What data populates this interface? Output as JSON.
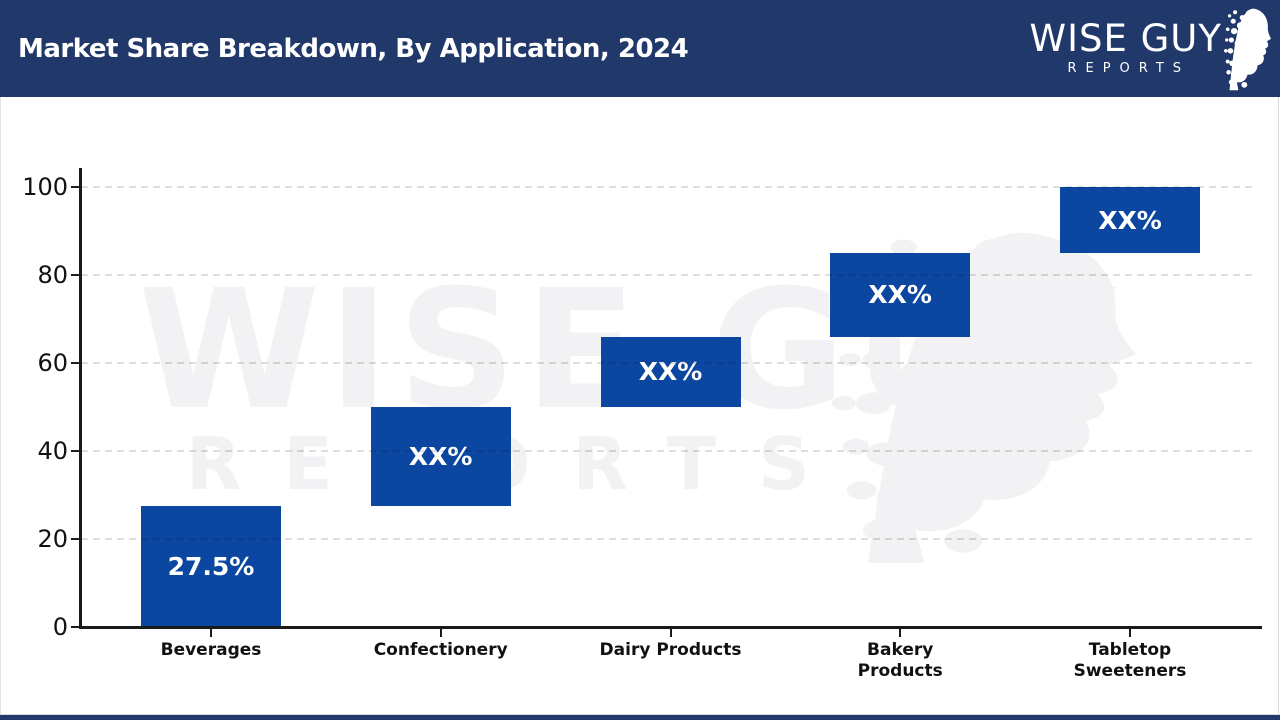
{
  "header": {
    "title": "Market Share Breakdown, By Application, 2024",
    "bg_color": "#21386a",
    "logo": {
      "line1": "WISE GUY",
      "line2": "REPORTS"
    }
  },
  "watermark": {
    "line1": "WISE GUY",
    "line2": "REPORTS"
  },
  "chart_data": {
    "type": "bar",
    "subtype": "floating-waterfall-bars",
    "title": "Market Share Breakdown, By Application, 2024",
    "categories": [
      "Beverages",
      "Confectionery",
      "Dairy Products",
      "Bakery Products",
      "Tabletop Sweeteners"
    ],
    "bars": [
      {
        "category": "Beverages",
        "start": 0,
        "end": 27.5,
        "label": "27.5%"
      },
      {
        "category": "Confectionery",
        "start": 27.5,
        "end": 50,
        "label": "XX%"
      },
      {
        "category": "Dairy Products",
        "start": 50,
        "end": 66,
        "label": "XX%"
      },
      {
        "category": "Bakery Products",
        "start": 66,
        "end": 85,
        "label": "XX%"
      },
      {
        "category": "Tabletop Sweeteners",
        "start": 85,
        "end": 100,
        "label": "XX%"
      }
    ],
    "yticks": [
      0,
      20,
      40,
      60,
      80,
      100
    ],
    "ylim": [
      0,
      104
    ],
    "xlabel": "",
    "ylabel": "",
    "bar_color": "#0b47a0",
    "grid": "horizontal-dashed",
    "legend": "none"
  },
  "footer": {
    "bar_color": "#21386a"
  }
}
